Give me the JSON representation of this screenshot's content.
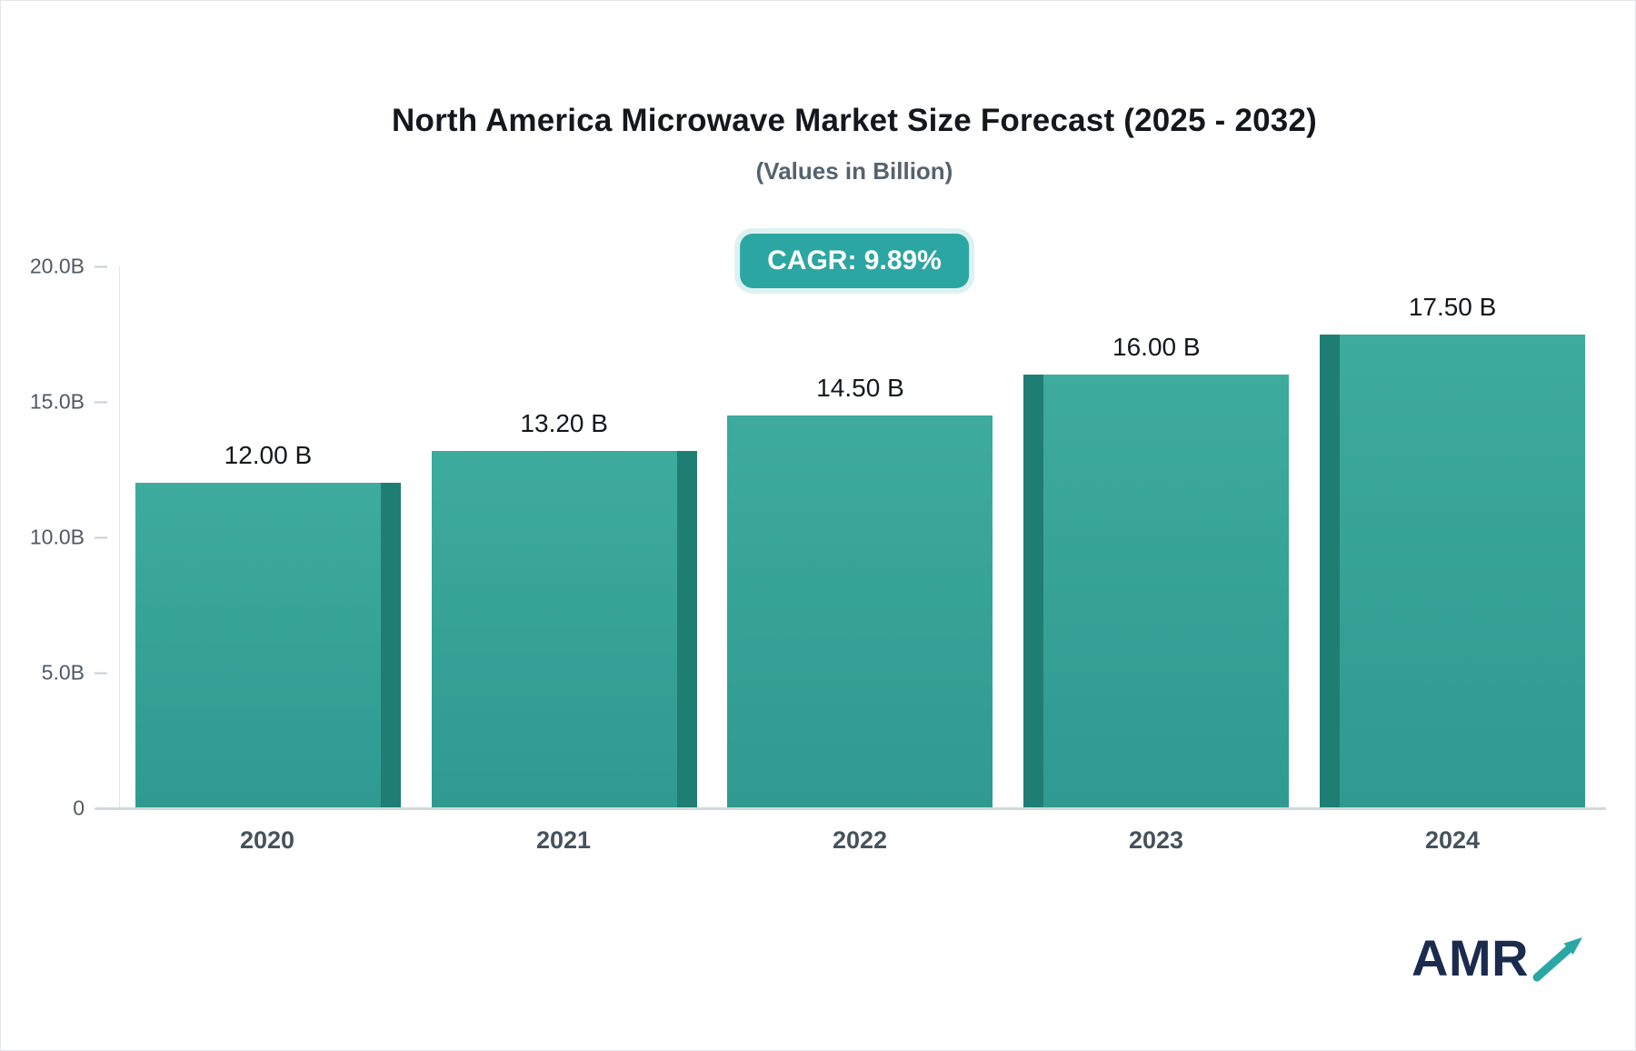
{
  "chart_data": {
    "type": "bar",
    "title": "North America Microwave Market Size Forecast (2025 - 2032)",
    "subtitle": "(Values in Billion)",
    "cagr_label": "CAGR: 9.89%",
    "categories": [
      "2020",
      "2021",
      "2022",
      "2023",
      "2024"
    ],
    "values": [
      12.0,
      13.2,
      14.5,
      16.0,
      17.5
    ],
    "value_labels": [
      "12.00 B",
      "13.20 B",
      "14.50 B",
      "16.00 B",
      "17.50 B"
    ],
    "xlabel": "",
    "ylabel": "",
    "ylim": [
      0,
      20
    ],
    "yticks": [
      {
        "label": "20.0B",
        "value": 20
      },
      {
        "label": "15.0B",
        "value": 15
      },
      {
        "label": "10.0B",
        "value": 10
      },
      {
        "label": "5.0B",
        "value": 5
      },
      {
        "label": "0",
        "value": 0
      }
    ],
    "grid": false,
    "legend": "none",
    "colors": {
      "bar_top": "#3dab9d",
      "bar_bottom": "#2f9a90",
      "bar_side": "#1f7e74",
      "badge_bg": "#2ba6a3",
      "badge_text": "#ffffff",
      "badge_glow": "rgba(43,166,163,0.16)"
    }
  },
  "logo": {
    "text": "AMR",
    "text_color": "#1b2b4d",
    "arrow_color": "#2aa7a4"
  }
}
